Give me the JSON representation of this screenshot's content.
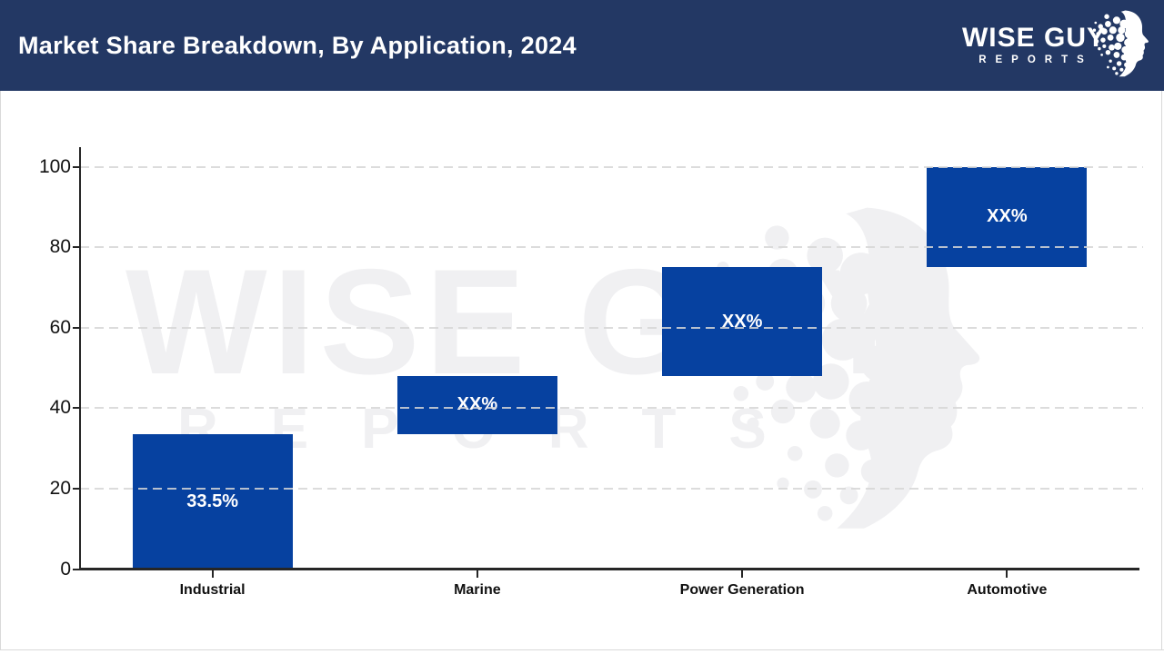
{
  "header": {
    "title": "Market Share Breakdown, By Application, 2024",
    "background_color": "#233864"
  },
  "logo": {
    "name_line": "WISE GUY",
    "sub_line": "REPORTS"
  },
  "watermark": {
    "name_line": "WISE GUY",
    "sub_line": "REPORTS"
  },
  "chart_data": {
    "type": "bar",
    "subtype": "waterfall",
    "title": "Market Share Breakdown, By Application, 2024",
    "categories": [
      "Industrial",
      "Marine",
      "Power Generation",
      "Automotive"
    ],
    "segments": [
      {
        "category": "Industrial",
        "start": 0,
        "end": 33.5,
        "value": 33.5,
        "label": "33.5%"
      },
      {
        "category": "Marine",
        "start": 33.5,
        "end": 48,
        "value": 14.5,
        "label": "XX%"
      },
      {
        "category": "Power Generation",
        "start": 48,
        "end": 75,
        "value": 27,
        "label": "XX%"
      },
      {
        "category": "Automotive",
        "start": 75,
        "end": 100,
        "value": 25,
        "label": "XX%"
      }
    ],
    "y_ticks": [
      0,
      20,
      40,
      60,
      80,
      100
    ],
    "ylim": [
      0,
      105
    ],
    "xlabel": "",
    "ylabel": "",
    "grid": "horizontal dashed, drawn over bars",
    "legend": "none",
    "bar_color": "#0641a0",
    "value_label_color": "#ffffff"
  }
}
